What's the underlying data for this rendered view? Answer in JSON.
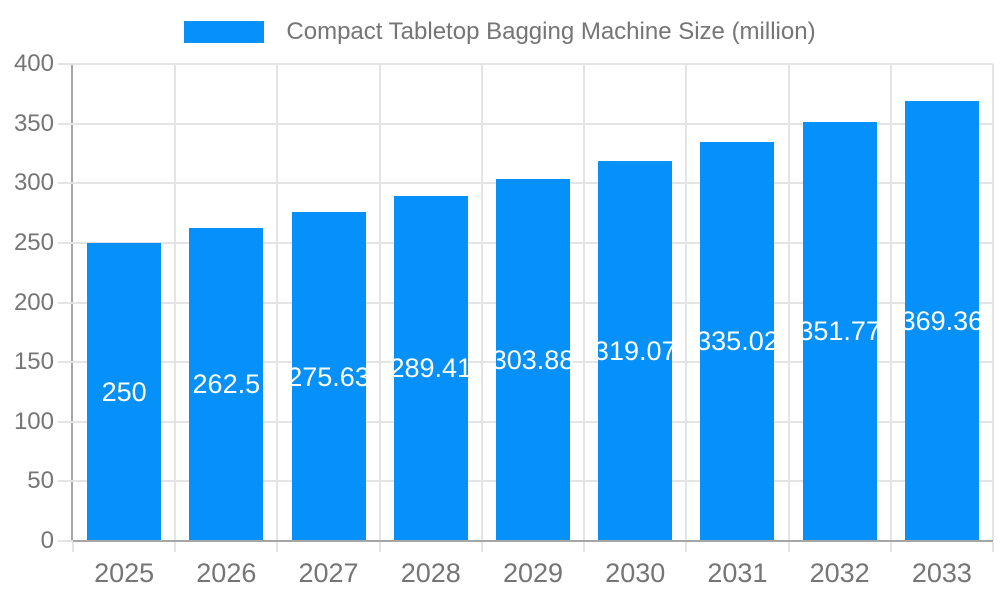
{
  "legend": {
    "label": "Compact Tabletop Bagging Machine Size (million)"
  },
  "chart_data": {
    "type": "bar",
    "title": "Compact Tabletop Bagging Machine Size (million)",
    "categories": [
      "2025",
      "2026",
      "2027",
      "2028",
      "2029",
      "2030",
      "2031",
      "2032",
      "2033"
    ],
    "series": [
      {
        "name": "Compact Tabletop Bagging Machine Size (million)",
        "values": [
          250,
          262.5,
          275.63,
          289.41,
          303.88,
          319.07,
          335.02,
          351.77,
          369.36
        ]
      }
    ],
    "value_labels": [
      "250",
      "262.5",
      "275.63",
      "289.41",
      "303.88",
      "319.07",
      "335.02",
      "351.77",
      "369.36"
    ],
    "xlabel": "",
    "ylabel": "",
    "ylim": [
      0,
      400
    ],
    "yticks": [
      0,
      50,
      100,
      150,
      200,
      250,
      300,
      350,
      400
    ],
    "grid": true,
    "legend_position": "top",
    "value_labels_position": "center-of-bar",
    "colors": {
      "bar": "#0690fa",
      "grid": "#e4e4e4",
      "axis": "#a6a6a6",
      "tick_label": "#757575",
      "value_label": "#ffffff",
      "background": "#ffffff"
    }
  }
}
